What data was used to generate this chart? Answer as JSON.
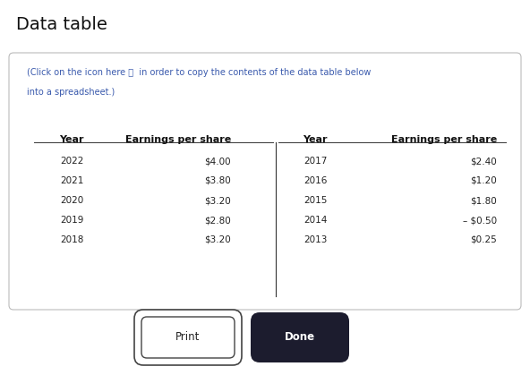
{
  "title": "Data table",
  "subtitle_line1": "(Click on the icon here ⎙  in order to copy the contents of the data table below",
  "subtitle_line2": "into a spreadsheet.)",
  "subtitle_color": "#3a5aad",
  "col_headers": [
    "Year",
    "Earnings per share",
    "Year",
    "Earnings per share"
  ],
  "left_years": [
    "2022",
    "2021",
    "2020",
    "2019",
    "2018"
  ],
  "left_eps": [
    "$4.00",
    "$3.80",
    "$3.20",
    "$2.80",
    "$3.20"
  ],
  "right_years": [
    "2017",
    "2016",
    "2015",
    "2014",
    "2013"
  ],
  "right_eps": [
    "$2.40",
    "$1.20",
    "$1.80",
    "– $0.50",
    "$0.25"
  ],
  "bg_color": "#ffffff",
  "header_color": "#111111",
  "data_color": "#222222",
  "print_btn_text": "Print",
  "done_btn_text": "Done",
  "done_btn_bg": "#1c1c2e",
  "done_btn_fg": "#ffffff",
  "print_btn_fg": "#222222"
}
